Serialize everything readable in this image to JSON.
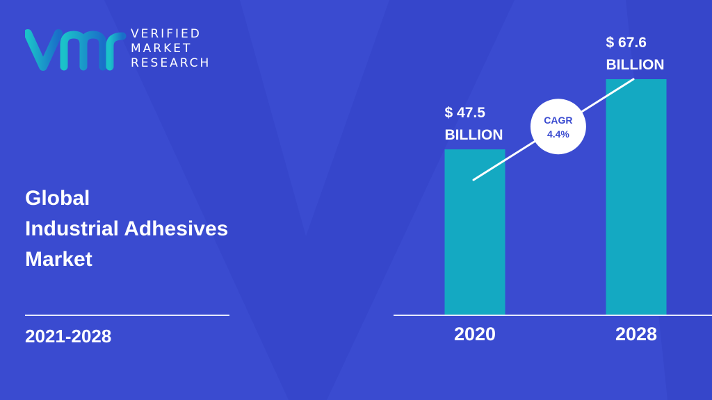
{
  "brand": {
    "line1": "VERIFIED",
    "line2": "MARKET",
    "line3": "RESEARCH"
  },
  "heading": {
    "line1": "Global",
    "line2": "Industrial Adhesives",
    "line3": "Market"
  },
  "period": "2021-2028",
  "colors": {
    "background": "#3a4bd0",
    "bar": "#14a9c2",
    "logo_gradient_start": "#1bc2c9",
    "logo_gradient_end": "#1a6fc9",
    "cagr_circle": "#ffffff"
  },
  "chart_data": {
    "type": "bar",
    "title": "",
    "xlabel": "",
    "ylabel": "",
    "categories": [
      "2020",
      "2028"
    ],
    "values": [
      47.5,
      67.6
    ],
    "value_labels": [
      [
        "$ 47.5",
        "BILLION"
      ],
      [
        "$ 67.6",
        "BILLION"
      ]
    ],
    "ylim": [
      0,
      67.6
    ],
    "grid": false,
    "cagr": {
      "label": "CAGR",
      "value": "4.4%"
    }
  }
}
